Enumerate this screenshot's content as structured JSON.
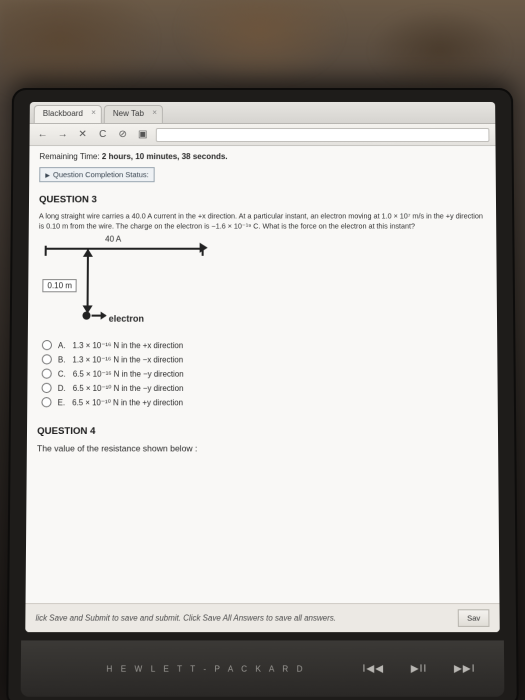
{
  "browser": {
    "tabs": [
      {
        "label": "Blackboard"
      },
      {
        "label": "New Tab"
      }
    ],
    "nav": {
      "back": "←",
      "forward": "→",
      "close": "✕",
      "reload": "C",
      "stop": "⊘",
      "bookmark": "▣"
    }
  },
  "timer": {
    "prefix": "Remaining Time:",
    "value": "2 hours, 10 minutes, 38 seconds."
  },
  "qcs": {
    "label": "Question Completion Status:"
  },
  "q3": {
    "title": "QUESTION 3",
    "text": "A long straight wire carries a 40.0 A current in the +x direction. At a particular instant, an electron moving at 1.0 × 10⁷ m/s in the +y direction is 0.10 m from the wire. The charge on the electron is −1.6 × 10⁻¹⁹ C. What is the force on the electron at this instant?",
    "wire_label": "40 A",
    "dist_label": "0.10 m",
    "electron_label": "electron",
    "choices": [
      {
        "key": "A.",
        "val": "1.3 × 10⁻¹⁶ N in the +x direction"
      },
      {
        "key": "B.",
        "val": "1.3 × 10⁻¹⁶ N in the −x direction"
      },
      {
        "key": "C.",
        "val": "6.5 × 10⁻¹⁶ N in the −y direction"
      },
      {
        "key": "D.",
        "val": "6.5 × 10⁻¹⁰ N in the −y direction"
      },
      {
        "key": "E.",
        "val": "6.5 × 10⁻¹⁰ N in the +y direction"
      }
    ]
  },
  "q4": {
    "title": "QUESTION 4",
    "text": "The value of the resistance shown below :"
  },
  "footer": {
    "text": "lick Save and Submit to save and submit. Click Save All Answers to save all answers.",
    "button": "Sav"
  },
  "laptop": {
    "brand": "H E W L E T T - P A C K A R D",
    "media": {
      "prev": "I◀◀",
      "play": "▶II",
      "next": "▶▶I"
    }
  },
  "colors": {
    "page_bg": "#f9f8f6",
    "screen_bg": "#e9e7e4",
    "text": "#2a2a2a",
    "laptop": "#1e1c1a"
  }
}
